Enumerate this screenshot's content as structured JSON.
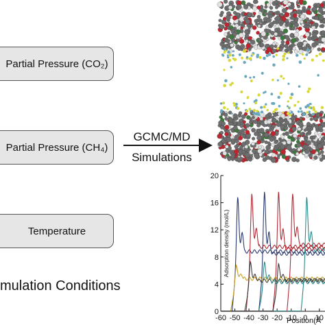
{
  "inputs": {
    "co2_label": "Partial Pressure (CO₂)",
    "ch4_label": "Partial Pressure (CH₄)",
    "temperature_label": "Temperature"
  },
  "caption": "mulation Conditions",
  "method": {
    "line1": "GCMC/MD",
    "line2": "Simulations"
  },
  "colors": {
    "carbon": "#6e6e6e",
    "oxygen": "#c0262f",
    "hydrogen": "#e2e2e2",
    "co2_gas": "#d8d83a",
    "ch4_gas": "#6aa8c0"
  },
  "chart_data": {
    "type": "line",
    "ylabel": "Adsorption density (mol/L)",
    "xlabel": "Position(Å",
    "xlim": [
      -60,
      14
    ],
    "ylim": [
      0,
      20
    ],
    "x_ticks": [
      "-60",
      "-50",
      "-40",
      "-30",
      "-20",
      "-10",
      "0",
      "10"
    ],
    "y_ticks": [
      "0",
      "4",
      "8",
      "12",
      "16",
      "20"
    ],
    "series": [
      {
        "color": "#2a3a6e",
        "peak_x": -48,
        "peak_y": 16.8,
        "rise_x": -52,
        "plateau": 8.8
      },
      {
        "color": "#b02a35",
        "peak_x": -38,
        "peak_y": 17.3,
        "rise_x": -42,
        "plateau": 9.5
      },
      {
        "color": "#2a3a6e",
        "peak_x": -29,
        "peak_y": 17.6,
        "rise_x": -33,
        "plateau": 8.5
      },
      {
        "color": "#b02a35",
        "peak_x": -19,
        "peak_y": 17.6,
        "rise_x": -23,
        "plateau": 9.2
      },
      {
        "color": "#b02a35",
        "peak_x": -9,
        "peak_y": 17.3,
        "rise_x": -13,
        "plateau": 9.8
      },
      {
        "color": "#2a8a8a",
        "peak_x": 1,
        "peak_y": 16.8,
        "rise_x": -3,
        "plateau": 9.0
      },
      {
        "color": "#c8a020",
        "peak_x": -49,
        "peak_y": 6.8,
        "rise_x": -53,
        "plateau": 4.8
      },
      {
        "color": "#3a3a3a",
        "peak_x": -39,
        "peak_y": 7.3,
        "rise_x": -43,
        "plateau": 4.5
      },
      {
        "color": "#2a8a8a",
        "peak_x": -29,
        "peak_y": 7.3,
        "rise_x": -33,
        "plateau": 4.3
      },
      {
        "color": "#3a3a3a",
        "peak_x": -19,
        "peak_y": 7.0,
        "rise_x": -23,
        "plateau": 4.6
      }
    ]
  }
}
